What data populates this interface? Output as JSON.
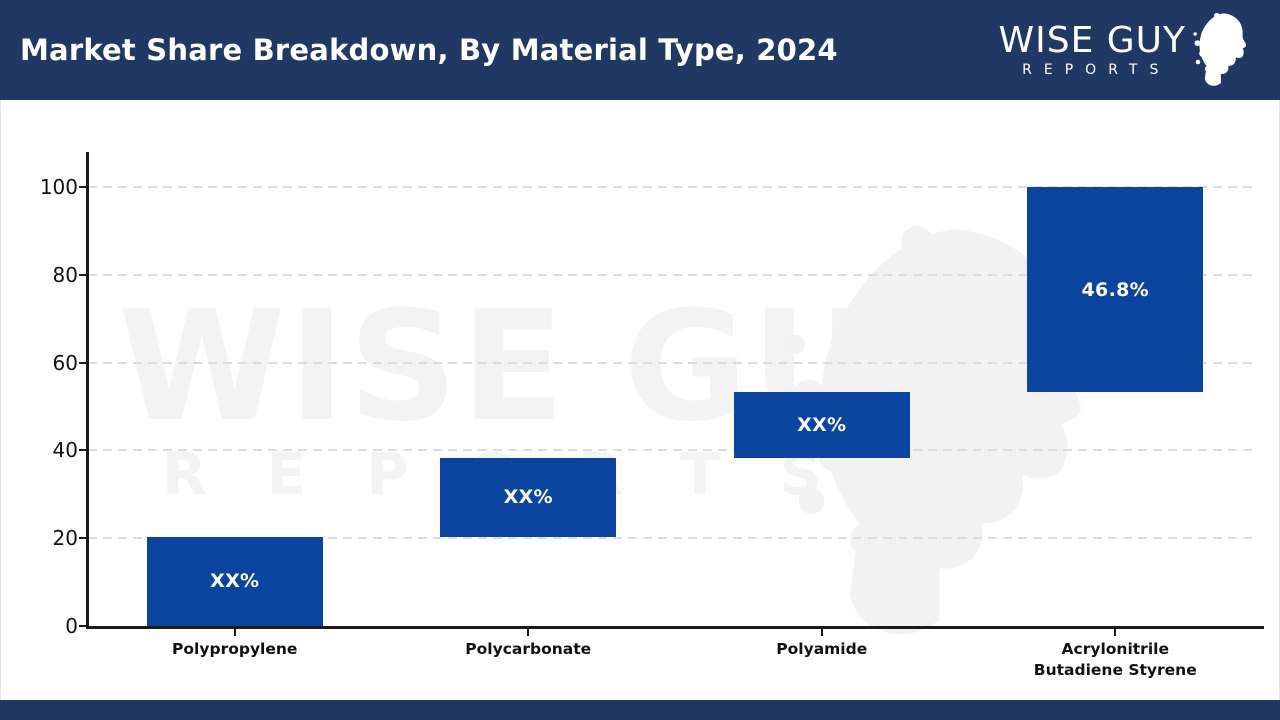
{
  "header": {
    "title": "Market Share Breakdown, By Material Type, 2024",
    "logo": {
      "line1": "WISE GUY",
      "line2": "REPORTS"
    }
  },
  "watermark": {
    "line1": "WISE GUY",
    "line2": "REPORTS"
  },
  "colors": {
    "header_bg": "#203864",
    "footer_bg": "#203864",
    "bar": "#0b45a0",
    "gridline": "#dcdcdc",
    "watermark": "#f3f3f3",
    "axis": "#1a1a1a"
  },
  "chart_data": {
    "type": "bar",
    "subtype": "waterfall",
    "title": "Market Share Breakdown, By Material Type, 2024",
    "categories": [
      "Polypropylene",
      "Polycarbonate",
      "Polyamide",
      "Acrylonitrile Butadiene Styrene"
    ],
    "bars": [
      {
        "category": "Polypropylene",
        "start": 0,
        "end": 20.3,
        "size": 20.3,
        "label": "XX%"
      },
      {
        "category": "Polycarbonate",
        "start": 20.3,
        "end": 38.3,
        "size": 18.0,
        "label": "XX%"
      },
      {
        "category": "Polyamide",
        "start": 38.3,
        "end": 53.2,
        "size": 14.9,
        "label": "XX%"
      },
      {
        "category": "Acrylonitrile Butadiene Styrene",
        "start": 53.2,
        "end": 100,
        "size": 46.8,
        "label": "46.8%"
      }
    ],
    "xlabel": "",
    "ylabel": "",
    "yticks": [
      0,
      20,
      40,
      60,
      80,
      100
    ],
    "ylim": [
      0,
      107
    ],
    "grid": "horizontal-dashed",
    "legend": "none"
  }
}
